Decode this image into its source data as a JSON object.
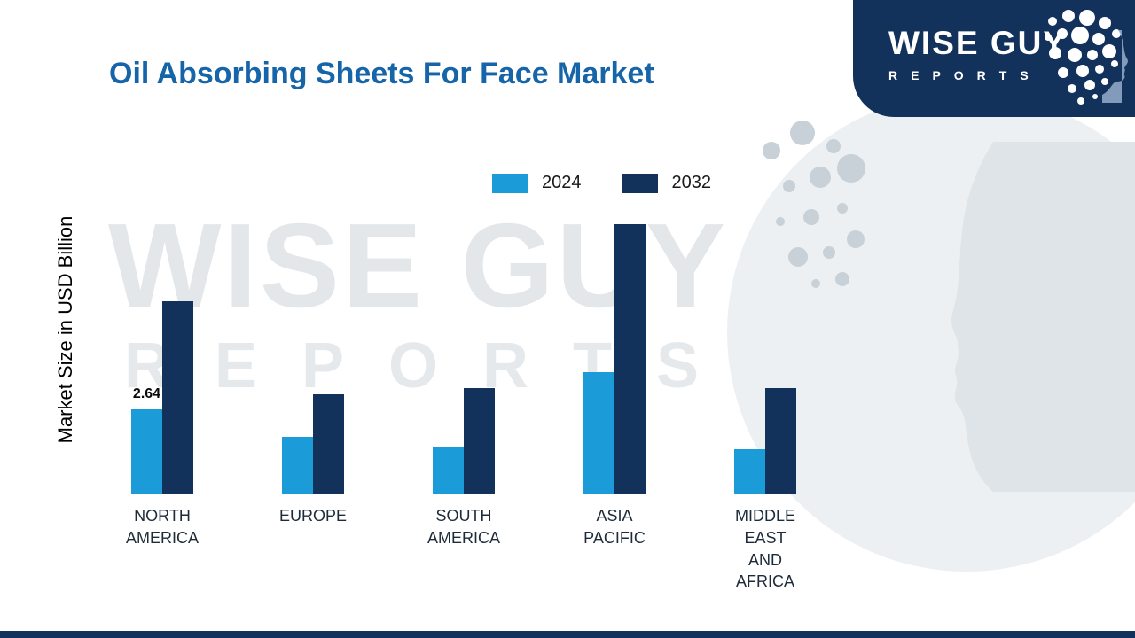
{
  "title": "Oil Absorbing Sheets For Face Market",
  "colors": {
    "navy": "#12325c",
    "light_blue": "#1b9cd9",
    "title_blue": "#1765a9",
    "watermark_gray": "#e3e7ea"
  },
  "logo": {
    "name_top": "WISE GUY",
    "name_bottom": "REPORTS"
  },
  "watermark": {
    "line1": "WISE GUY",
    "line2": "REPORTS"
  },
  "chart_data": {
    "type": "bar",
    "title": "Oil Absorbing Sheets For Face Market",
    "xlabel": "",
    "ylabel": "Market Size in USD Billion",
    "ylim": [
      0,
      8.8
    ],
    "grid": false,
    "legend_position": "top-center",
    "categories": [
      "NORTH AMERICA",
      "EUROPE",
      "SOUTH AMERICA",
      "ASIA PACIFIC",
      "MIDDLE EAST AND AFRICA"
    ],
    "category_label_lines": [
      [
        "NORTH",
        "AMERICA"
      ],
      [
        "EUROPE"
      ],
      [
        "SOUTH",
        "AMERICA"
      ],
      [
        "ASIA",
        "PACIFIC"
      ],
      [
        "MIDDLE",
        "EAST",
        "AND",
        "AFRICA"
      ]
    ],
    "series": [
      {
        "name": "2024",
        "color": "#1b9cd9",
        "values": [
          2.64,
          1.8,
          1.45,
          3.8,
          1.4
        ]
      },
      {
        "name": "2032",
        "color": "#12325c",
        "values": [
          6.0,
          3.1,
          3.3,
          8.4,
          3.3
        ]
      }
    ],
    "annotations": [
      {
        "category_index": 0,
        "series_index": 0,
        "text": "2.64"
      }
    ]
  }
}
